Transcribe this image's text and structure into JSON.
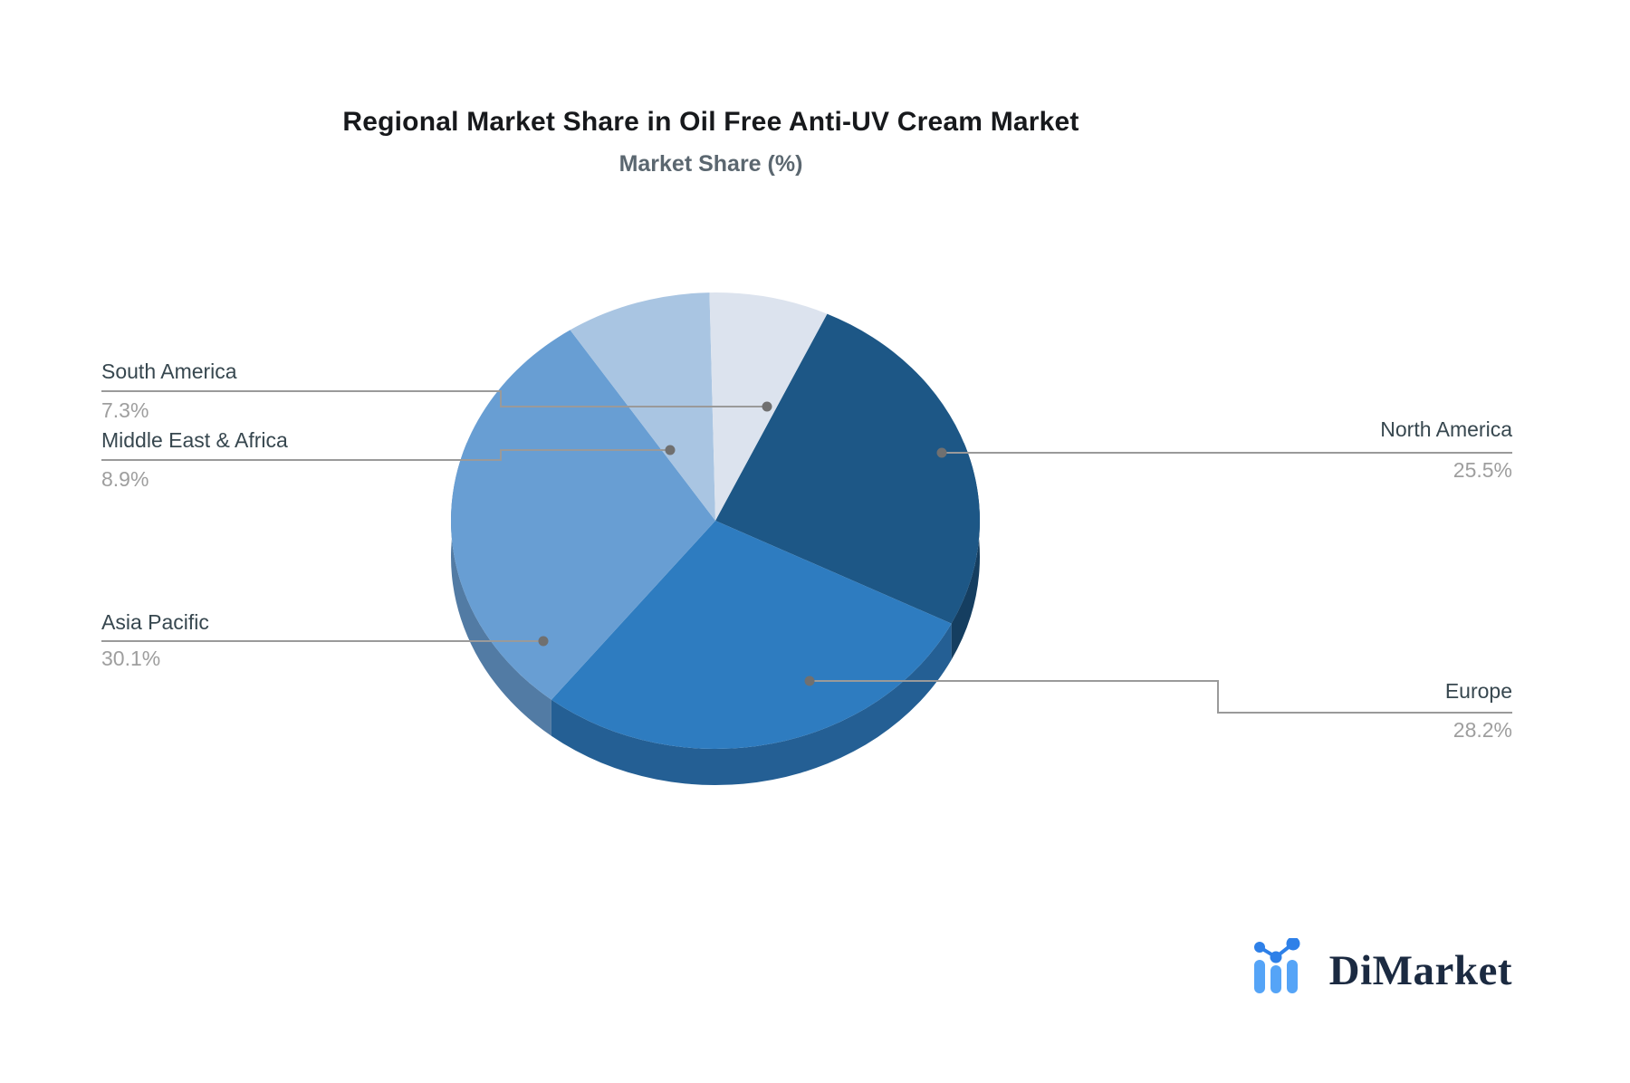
{
  "chart_data": {
    "type": "pie",
    "style": "pie3d",
    "title": "Regional Market Share in Oil Free Anti-UV Cream Market",
    "subtitle": "Market Share (%)",
    "legend_position": "callout-labels",
    "grid": false,
    "segments": [
      {
        "label": "North America",
        "value": 25.5,
        "value_label": "25.5%",
        "color": "#1d5786",
        "side_color": "#153e60"
      },
      {
        "label": "Europe",
        "value": 28.2,
        "value_label": "28.2%",
        "color": "#2e7cc0",
        "side_color": "#245f94"
      },
      {
        "label": "Asia Pacific",
        "value": 30.1,
        "value_label": "30.1%",
        "color": "#689ed3",
        "side_color": "#527ba4"
      },
      {
        "label": "Middle East & Africa",
        "value": 8.9,
        "value_label": "8.9%",
        "color": "#a9c5e2",
        "side_color": "#8ba3bd"
      },
      {
        "label": "South America",
        "value": 7.3,
        "value_label": "7.3%",
        "color": "#dce3ee",
        "side_color": "#b8c0cf"
      }
    ],
    "callout_line_color": "#9a9a9a",
    "callout_dot_color": "#707070"
  },
  "brand": {
    "name": "DiMarket",
    "icon": "bar-line-chart-icon"
  }
}
